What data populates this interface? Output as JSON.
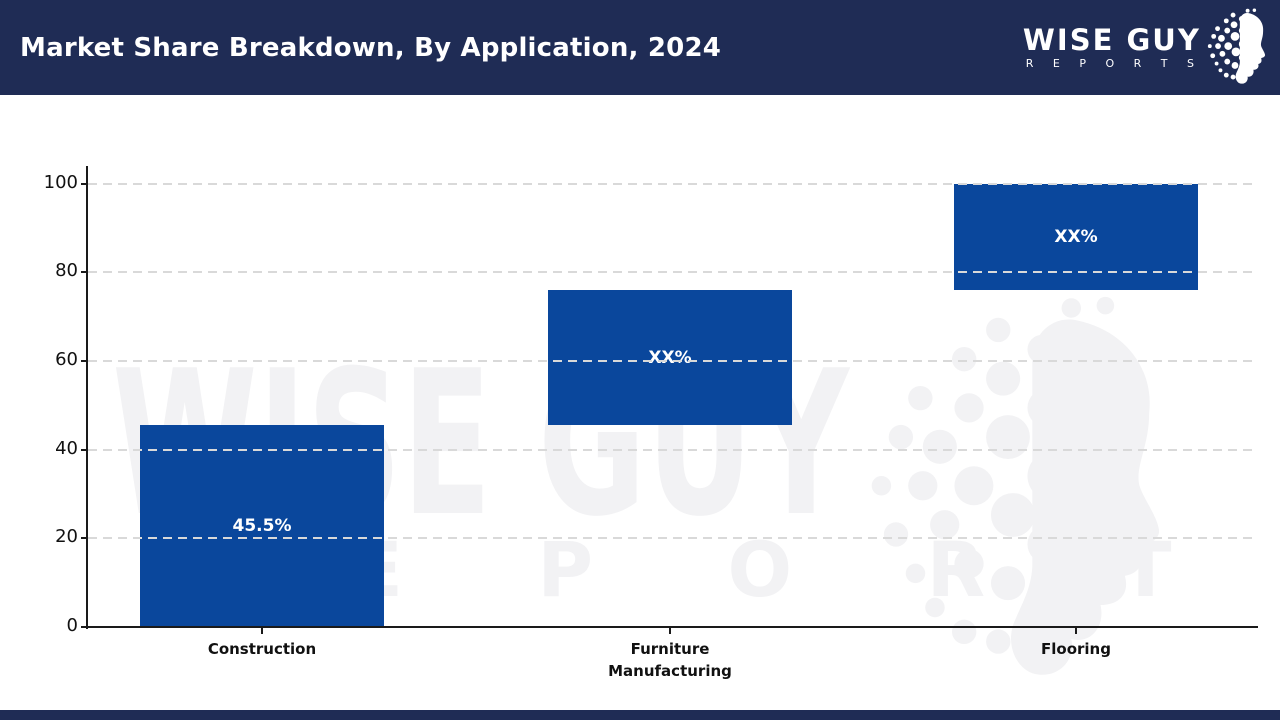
{
  "header": {
    "title": "Market Share Breakdown, By Application, 2024",
    "logo": {
      "name": "WISE GUY",
      "sub": "R E P O R T S"
    }
  },
  "watermark": {
    "name": "WISE GUY",
    "sub": "R E P O R T S"
  },
  "colors": {
    "header_bg": "#1f2c55",
    "footer_bg": "#1f2c55",
    "bar": "#0a479c",
    "grid": "#d9d9d9",
    "axis": "#1a1a1a",
    "watermark": "#f2f2f4"
  },
  "chart_data": {
    "type": "bar",
    "subtype": "floating-waterfall",
    "title": "Market Share Breakdown, By Application, 2024",
    "categories": [
      "Construction",
      "Furniture\nManufacturing",
      "Flooring"
    ],
    "segments": [
      {
        "category": "Construction",
        "start": 0,
        "end": 45.5,
        "label": "45.5%"
      },
      {
        "category": "Furniture Manufacturing",
        "start": 45.5,
        "end": 76,
        "label": "XX%"
      },
      {
        "category": "Flooring",
        "start": 76,
        "end": 100,
        "label": "XX%"
      }
    ],
    "yticks": [
      0,
      20,
      40,
      60,
      80,
      100
    ],
    "ylim": [
      0,
      105
    ],
    "xlabel": "",
    "ylabel": "",
    "grid": "horizontal-dashed",
    "legend": null
  }
}
